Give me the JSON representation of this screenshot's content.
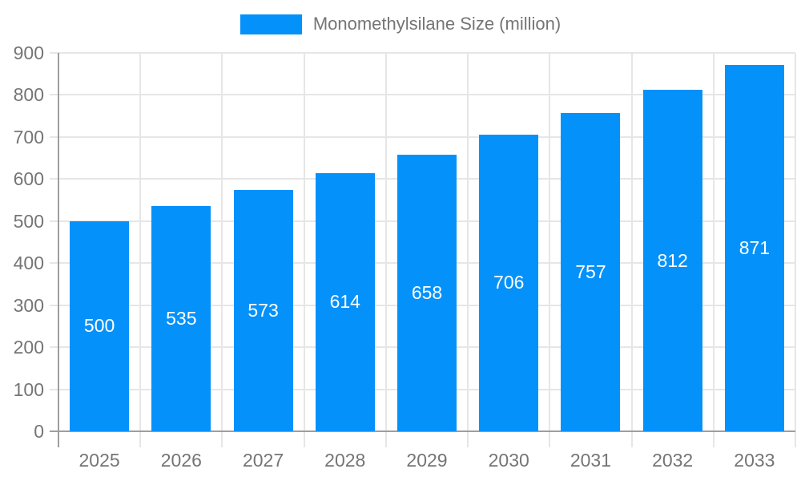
{
  "legend": {
    "items": [
      {
        "label": "Monomethylsilane Size (million)",
        "swatch_color": "#0591fa"
      }
    ]
  },
  "colors": {
    "bar": "#0591fa",
    "grid": "#e6e6e6",
    "axis": "#9e9e9e",
    "axis_text": "#757575",
    "value_label_text": "#ffffff",
    "background": "#ffffff"
  },
  "chart_data": {
    "type": "bar",
    "title": "",
    "xlabel": "",
    "ylabel": "",
    "categories": [
      "2025",
      "2026",
      "2027",
      "2028",
      "2029",
      "2030",
      "2031",
      "2032",
      "2033"
    ],
    "series": [
      {
        "name": "Monomethylsilane Size (million)",
        "values": [
          500,
          535,
          573,
          614,
          658,
          706,
          757,
          812,
          871
        ]
      }
    ],
    "value_labels": [
      "500",
      "535",
      "573",
      "614",
      "658",
      "706",
      "757",
      "812",
      "871"
    ],
    "value_label_position": "inside-center",
    "ylim": [
      0,
      900
    ],
    "yticks": [
      0,
      100,
      200,
      300,
      400,
      500,
      600,
      700,
      800,
      900
    ],
    "grid": true,
    "legend_position": "top-center"
  }
}
